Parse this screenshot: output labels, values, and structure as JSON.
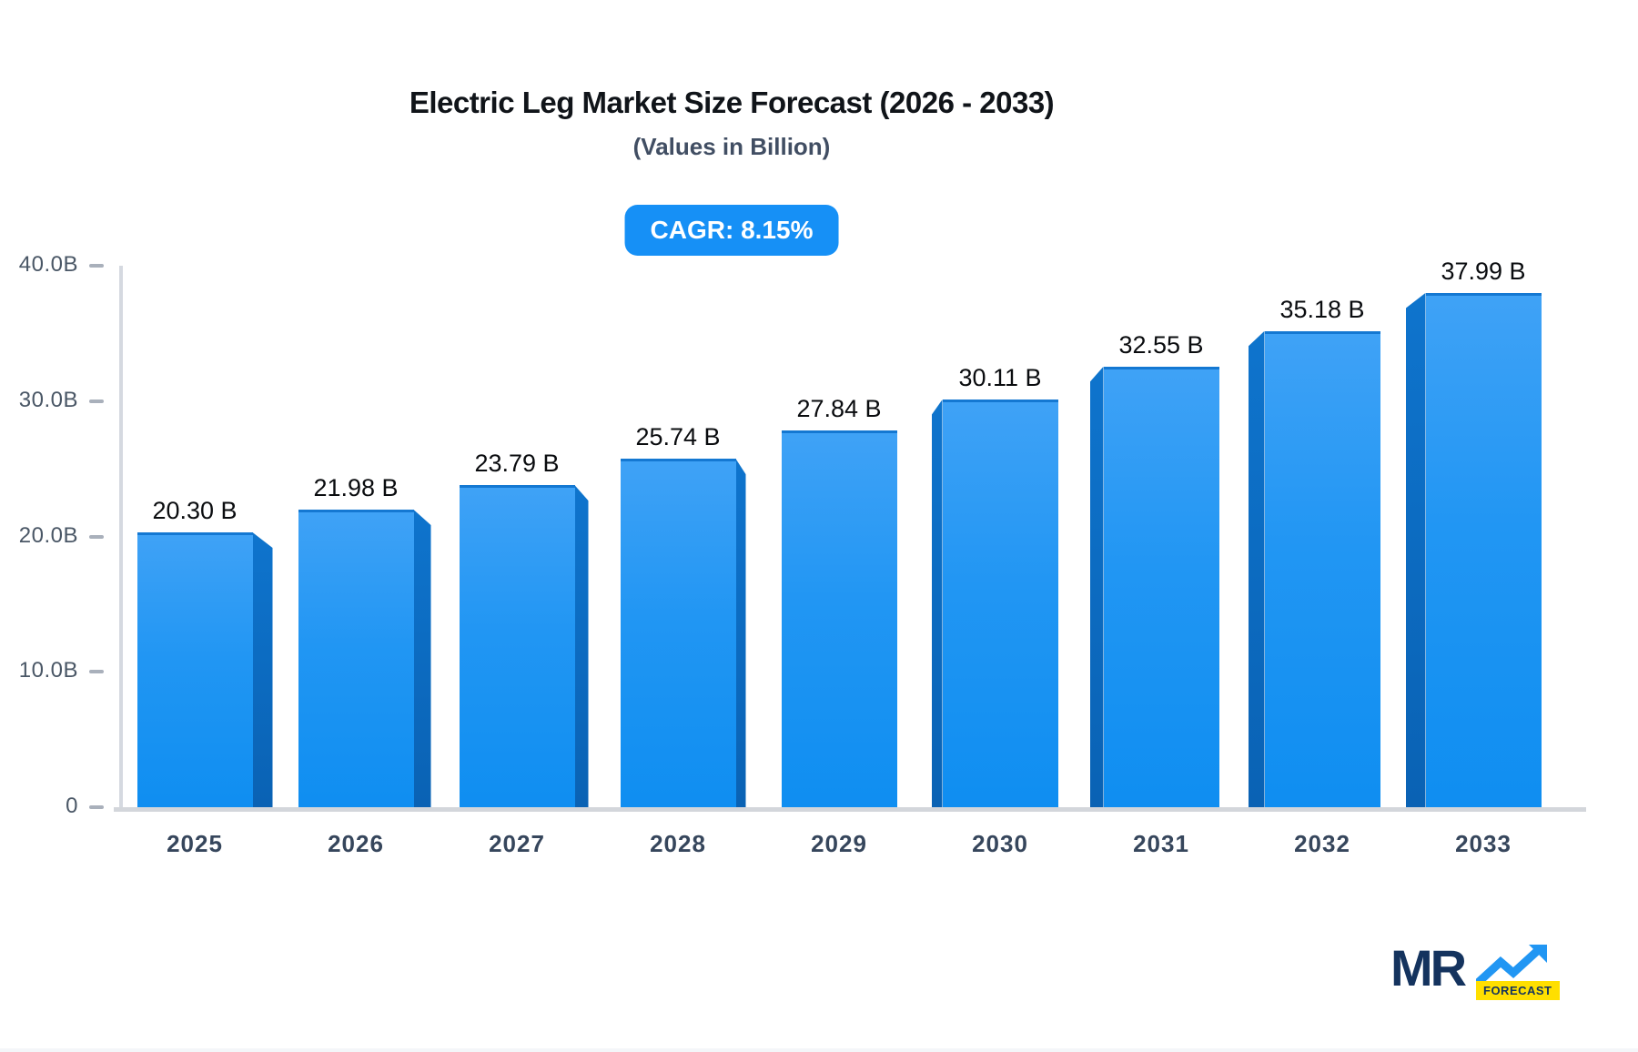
{
  "header": {
    "title": "Electric Leg Market Size Forecast (2026 - 2033)",
    "subtitle": "(Values in Billion)",
    "cagr_badge": "CAGR: 8.15%"
  },
  "chart_data": {
    "type": "bar",
    "title": "Electric Leg Market Size Forecast (2026 - 2033)",
    "subtitle": "(Values in Billion)",
    "cagr_percent": 8.15,
    "categories": [
      "2025",
      "2026",
      "2027",
      "2028",
      "2029",
      "2030",
      "2031",
      "2032",
      "2033"
    ],
    "values": [
      20.3,
      21.98,
      23.79,
      25.74,
      27.84,
      30.11,
      32.55,
      35.18,
      37.99
    ],
    "value_labels": [
      "20.30 B",
      "21.98 B",
      "23.79 B",
      "25.74 B",
      "27.84 B",
      "30.11 B",
      "32.55 B",
      "35.18 B",
      "37.99 B"
    ],
    "xlabel": "",
    "ylabel": "",
    "ylim": [
      0,
      40
    ],
    "yticks": [
      {
        "value": 0,
        "label": "0"
      },
      {
        "value": 10,
        "label": "10.0B"
      },
      {
        "value": 20,
        "label": "20.0B"
      },
      {
        "value": 30,
        "label": "30.0B"
      },
      {
        "value": 40,
        "label": "40.0B"
      }
    ],
    "grid": false,
    "legend": false,
    "bar_style": "3d-perspective",
    "colors": {
      "face_top": "#3fa2f6",
      "face_mid": "#2196f3",
      "face_bottom": "#0f8ef1",
      "face_top_edge": "#1478d2",
      "side_top": "#0e74cd",
      "side_bottom": "#0a62b4"
    }
  },
  "badge": {
    "background": "#1690f6",
    "text_color": "#ffffff"
  },
  "logo": {
    "mr_text": "MR",
    "forecast_text": "FORECAST",
    "navy": "#14335e",
    "blue": "#2196f3",
    "yellow": "#ffdf00"
  }
}
